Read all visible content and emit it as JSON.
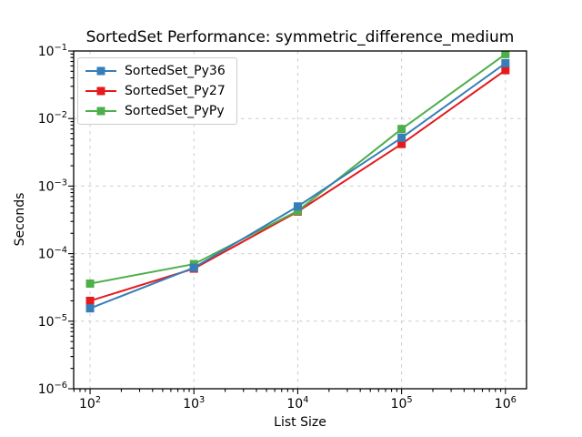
{
  "chart_data": {
    "type": "line",
    "title": "SortedSet Performance: symmetric_difference_medium",
    "xlabel": "List Size",
    "ylabel": "Seconds",
    "xscale": "log",
    "yscale": "log",
    "x": [
      100,
      1000,
      10000,
      100000,
      1000000
    ],
    "series": [
      {
        "name": "SortedSet_Py36",
        "color": "#377eb8",
        "values": [
          1.55e-05,
          6.2e-05,
          0.0005,
          0.0052,
          0.066
        ]
      },
      {
        "name": "SortedSet_Py27",
        "color": "#e41a1c",
        "values": [
          2e-05,
          6e-05,
          0.00042,
          0.0042,
          0.052
        ]
      },
      {
        "name": "SortedSet_PyPy",
        "color": "#4daf4a",
        "values": [
          3.6e-05,
          7e-05,
          0.00043,
          0.007,
          0.09
        ]
      }
    ],
    "draw_order": [
      "SortedSet_Py27",
      "SortedSet_PyPy",
      "SortedSet_Py36"
    ],
    "marker": "square",
    "x_tick_exponents": [
      2,
      3,
      4,
      5,
      6
    ],
    "y_tick_exponents": [
      -1,
      -2,
      -3,
      -4,
      -5,
      -6
    ],
    "xlim": [
      100,
      1000000
    ],
    "ylim": [
      1e-06,
      0.1
    ],
    "grid": true,
    "grid_style": "dashed",
    "legend_position": "upper left",
    "colors": {
      "text": "#000000",
      "axes": "#000000",
      "grid": "#cccccc",
      "legend_border": "#cccccc",
      "background": "#ffffff"
    }
  }
}
